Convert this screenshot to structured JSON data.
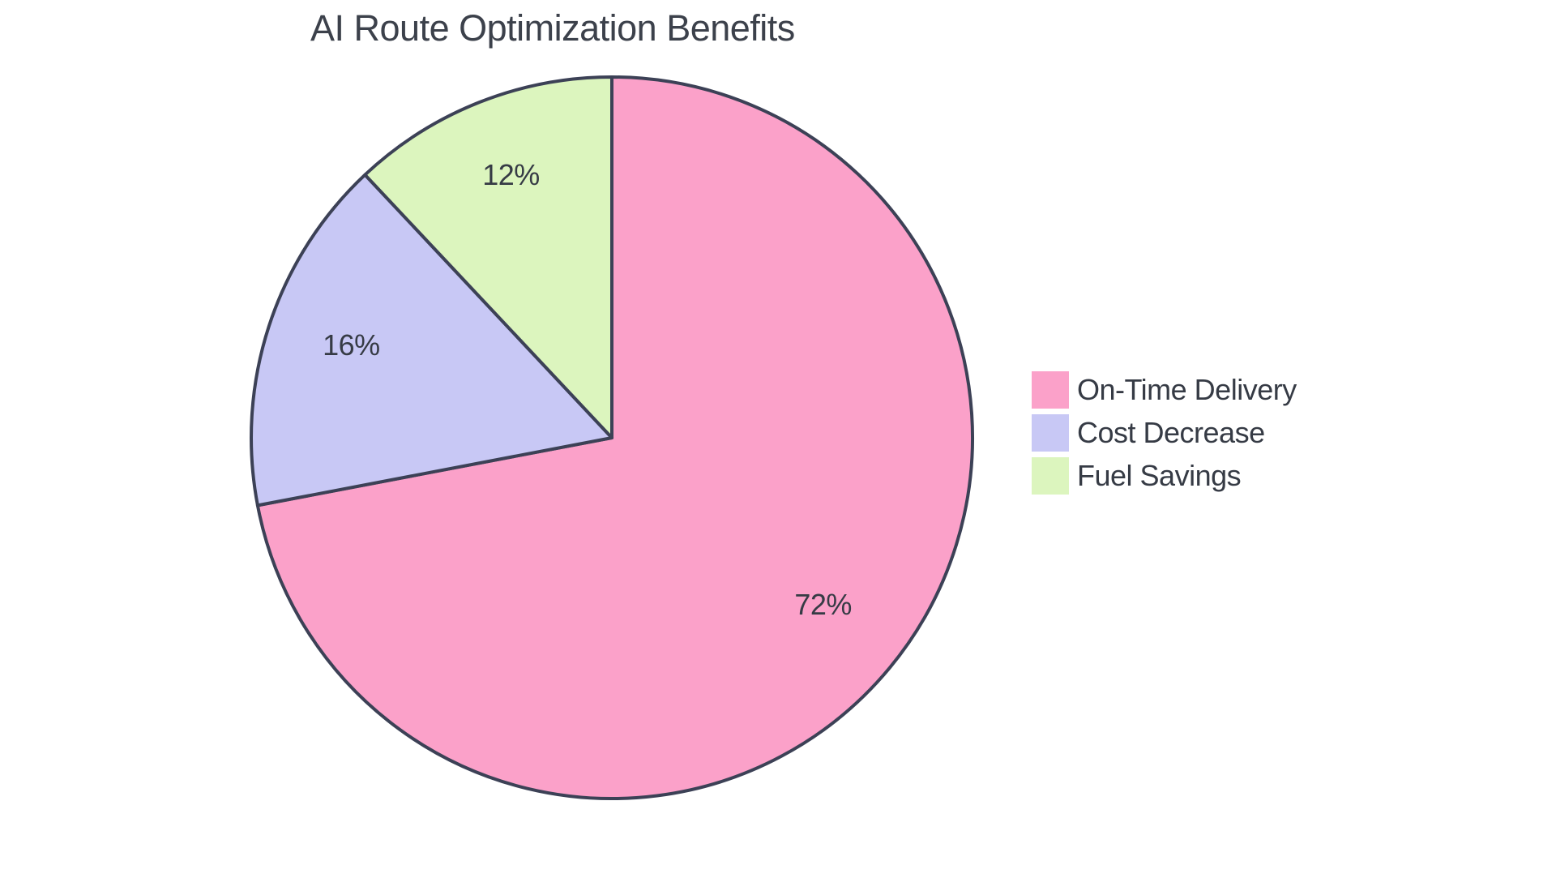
{
  "header": {
    "title": "AI Route Optimization Benefits"
  },
  "chart_data": {
    "type": "pie",
    "title": "AI Route Optimization Benefits",
    "labels": [
      "On-Time Delivery",
      "Cost Decrease",
      "Fuel Savings"
    ],
    "values": [
      72,
      16,
      12
    ],
    "value_labels": [
      "72%",
      "16%",
      "12%"
    ],
    "colors": [
      "#FBA1C9",
      "#C8C8F5",
      "#DCF5BE"
    ],
    "outline_color": "#3C4156",
    "text_color": "#363B45",
    "start_angle_deg": 0,
    "direction": "clockwise",
    "legend_position": "right",
    "grid": false
  }
}
